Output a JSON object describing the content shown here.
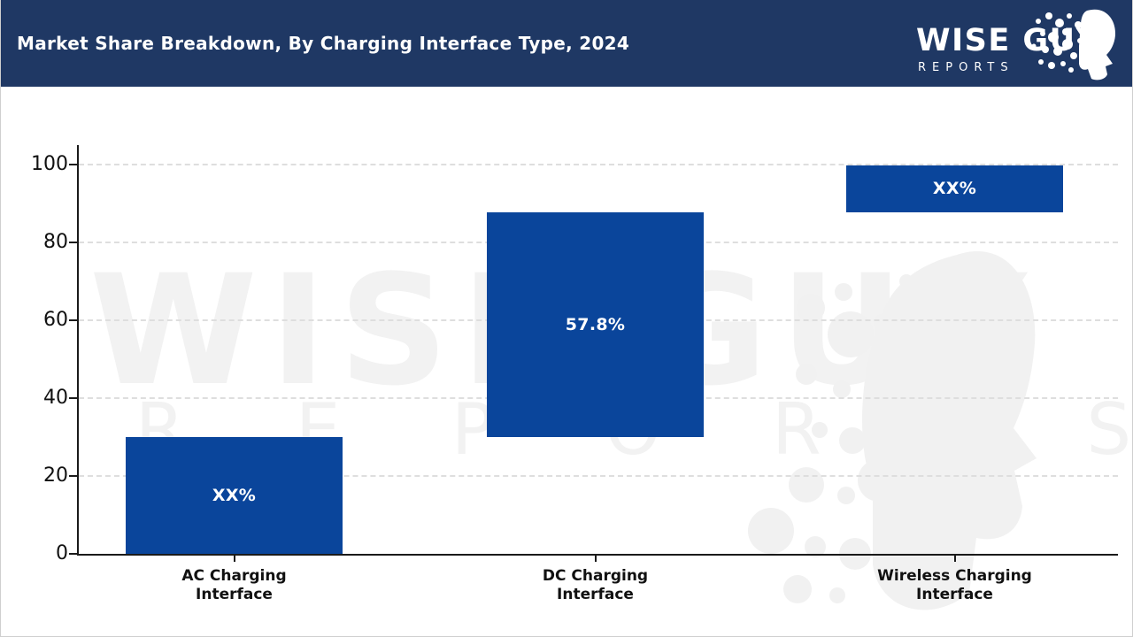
{
  "header": {
    "title": "Market Share Breakdown, By Charging Interface Type, 2024",
    "background_color": "#1f3864",
    "logo": {
      "line1": "WISE GUY",
      "line2": "R E P O R T S"
    }
  },
  "watermark": {
    "line1": "WISE GUY",
    "line2": "R E P O R T S"
  },
  "chart_data": {
    "type": "bar",
    "subtype": "floating-waterfall-columns",
    "title": "Market Share Breakdown, By Charging Interface Type, 2024",
    "xlabel": "",
    "ylabel": "",
    "ylim": [
      0,
      105
    ],
    "yticks": [
      0,
      20,
      40,
      60,
      80,
      100
    ],
    "grid": "horizontal-dashed",
    "legend": "none",
    "bar_color": "#0a459b",
    "categories": [
      "AC Charging Interface",
      "DC Charging Interface",
      "Wireless Charging Interface"
    ],
    "bars": [
      {
        "category_line1": "AC Charging",
        "category_line2": "Interface",
        "start": 0,
        "end": 30,
        "value": 30,
        "label": "XX%"
      },
      {
        "category_line1": "DC Charging",
        "category_line2": "Interface",
        "start": 30,
        "end": 87.8,
        "value": 57.8,
        "label": "57.8%"
      },
      {
        "category_line1": "Wireless Charging",
        "category_line2": "Interface",
        "start": 87.8,
        "end": 99.8,
        "value": 12,
        "label": "XX%"
      }
    ]
  }
}
